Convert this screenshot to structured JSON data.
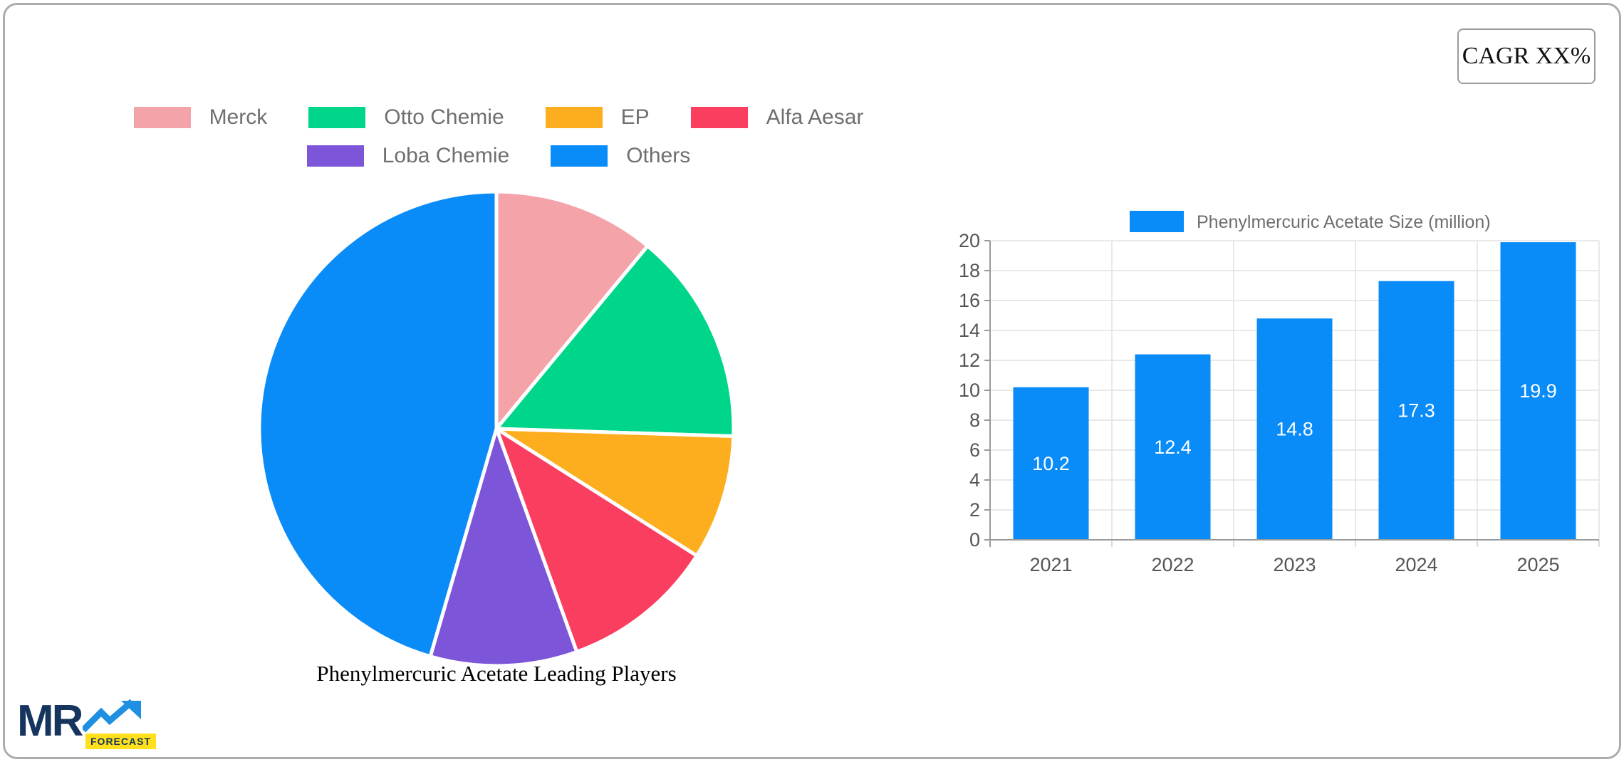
{
  "cagr_box": {
    "label": "CAGR XX%"
  },
  "logo": {
    "mr": "MR",
    "forecast": "FORECAST"
  },
  "chart_data": [
    {
      "type": "pie",
      "title": "Phenylmercuric Acetate Leading Players",
      "labels": [
        "Merck",
        "Otto Chemie",
        "EP",
        "Alfa Aesar",
        "Loba Chemie",
        "Others"
      ],
      "values": [
        11,
        14.5,
        8.5,
        10.5,
        10,
        45.5
      ],
      "unit": "percent",
      "colors": [
        "#F4A3A8",
        "#00D689",
        "#FCAE1E",
        "#FA3E5F",
        "#7C55D8",
        "#0A8CF8"
      ],
      "start_angle_deg": 0,
      "direction": "clockwise",
      "legend_position": "top",
      "legend_rows": [
        4,
        2
      ]
    },
    {
      "type": "bar",
      "legend": "Phenylmercuric Acetate Size (million)",
      "categories": [
        "2021",
        "2022",
        "2023",
        "2024",
        "2025"
      ],
      "values": [
        10.2,
        12.4,
        14.8,
        17.3,
        19.9
      ],
      "bar_color": "#0A8CF8",
      "value_label_color": "#FFFFFF",
      "axis_text_color": "#555555",
      "legend_text_color": "#6E6E6E",
      "grid_color": "#E2E2E2",
      "axis_line_color": "#9A9A9A",
      "ylim": [
        0,
        20
      ],
      "ytick_step": 2,
      "grid": true,
      "legend_position": "top"
    }
  ]
}
